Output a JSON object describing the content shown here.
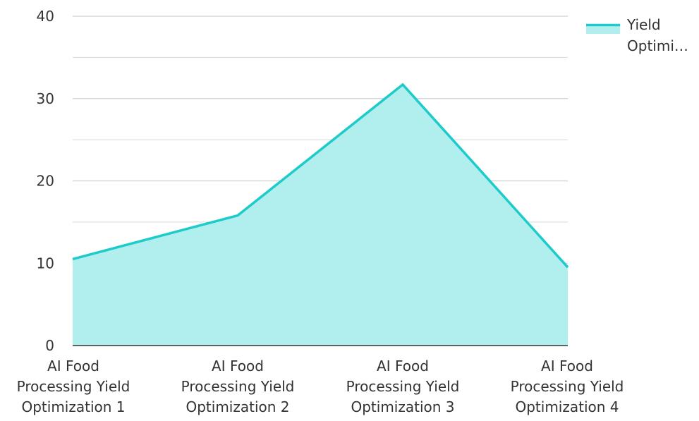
{
  "chart_data": {
    "type": "area",
    "categories": [
      "AI Food Processing Yield Optimization 1",
      "AI Food Processing Yield Optimization 2",
      "AI Food Processing Yield Optimization 3",
      "AI Food Processing Yield Optimization 4"
    ],
    "series": [
      {
        "name": "Yield Optimi…",
        "values": [
          10.5,
          15.8,
          31.7,
          9.5
        ]
      }
    ],
    "ylim": [
      0,
      40
    ],
    "yticks": [
      "0",
      "10",
      "20",
      "30",
      "40"
    ],
    "grid": true,
    "legend_position": "top-right",
    "line_color": "#1ecbcb",
    "fill_color": "#b1eeee",
    "grid_color": "#d0d0d0",
    "axis_color": "#333333"
  }
}
